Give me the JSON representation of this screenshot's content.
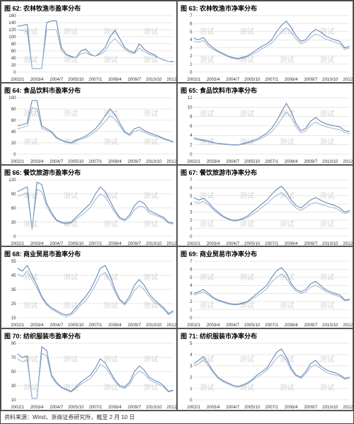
{
  "watermark_text": "测试",
  "colors": {
    "series_a": "#5a7fb0",
    "series_b": "#9db5d0",
    "grid": "#d0d0d0",
    "border": "#555555",
    "text": "#000000"
  },
  "xaxis": {
    "labels": [
      "2002/1",
      "2003/4",
      "2004/7",
      "2005/10",
      "2007/1",
      "2008/4",
      "2009/7",
      "2010/10",
      "2012/1"
    ],
    "fontsize": 6
  },
  "title_fontsize": 9,
  "axis_fontsize": 6,
  "charts": [
    {
      "id": "c62",
      "title": "图 62: 农林牧渔市盈率分布",
      "ylim": [
        0,
        160
      ],
      "ytick_step": 20,
      "series": [
        {
          "color": "#5a7fb0",
          "data": [
            130,
            132,
            135,
            10,
            10,
            10,
            140,
            145,
            145,
            70,
            50,
            45,
            40,
            60,
            65,
            50,
            45,
            55,
            70,
            100,
            118,
            95,
            70,
            60,
            55,
            80,
            65,
            55,
            50,
            40,
            35,
            30,
            30
          ]
        },
        {
          "color": "#9db5d0",
          "data": [
            120,
            118,
            115,
            10,
            10,
            10,
            120,
            120,
            120,
            60,
            48,
            42,
            40,
            52,
            55,
            48,
            45,
            50,
            60,
            82,
            95,
            80,
            65,
            55,
            52,
            68,
            58,
            50,
            46,
            40,
            34,
            30,
            28
          ]
        }
      ]
    },
    {
      "id": "c63",
      "title": "图 63: 农林牧渔市净率分布",
      "ylim": [
        0,
        7
      ],
      "ytick_step": 1,
      "series": [
        {
          "color": "#5a7fb0",
          "data": [
            4.2,
            4.0,
            4.3,
            3.5,
            3.0,
            2.6,
            2.3,
            2.0,
            1.8,
            1.7,
            1.8,
            2.0,
            2.4,
            2.8,
            3.2,
            3.5,
            4.0,
            5.0,
            5.8,
            6.3,
            5.5,
            4.5,
            3.8,
            4.0,
            4.8,
            5.3,
            5.0,
            4.5,
            4.2,
            4.0,
            3.8,
            3.0,
            3.2
          ]
        },
        {
          "color": "#9db5d0",
          "data": [
            3.8,
            3.7,
            3.9,
            3.2,
            2.8,
            2.5,
            2.2,
            1.9,
            1.7,
            1.6,
            1.7,
            1.9,
            2.2,
            2.5,
            2.9,
            3.2,
            3.6,
            4.3,
            5.0,
            5.5,
            4.9,
            4.1,
            3.5,
            3.7,
            4.3,
            4.7,
            4.5,
            4.1,
            3.9,
            3.7,
            3.5,
            2.8,
            3.0
          ]
        }
      ]
    },
    {
      "id": "c64",
      "title": "图 64: 食品饮料市盈率分布",
      "ylim": [
        0,
        100
      ],
      "ytick_step": 20,
      "series": [
        {
          "color": "#5a7fb0",
          "data": [
            50,
            52,
            55,
            95,
            95,
            50,
            45,
            40,
            30,
            25,
            22,
            20,
            25,
            28,
            32,
            38,
            45,
            55,
            68,
            80,
            70,
            55,
            40,
            35,
            45,
            48,
            42,
            38,
            35,
            32,
            28,
            25,
            22
          ]
        },
        {
          "color": "#9db5d0",
          "data": [
            45,
            47,
            50,
            82,
            80,
            46,
            42,
            38,
            28,
            24,
            21,
            19,
            23,
            26,
            29,
            34,
            40,
            48,
            58,
            68,
            62,
            50,
            38,
            33,
            40,
            43,
            39,
            35,
            32,
            30,
            26,
            24,
            21
          ]
        }
      ]
    },
    {
      "id": "c65",
      "title": "图 65: 食品饮料市净率分布",
      "ylim": [
        0,
        12
      ],
      "ytick_step": 2,
      "series": [
        {
          "color": "#5a7fb0",
          "data": [
            3.5,
            3.2,
            3.0,
            2.8,
            2.5,
            2.3,
            2.2,
            2.1,
            2.0,
            2.0,
            2.2,
            2.5,
            2.8,
            3.2,
            3.8,
            4.5,
            5.5,
            7.0,
            9.0,
            10.8,
            9.0,
            6.5,
            5.0,
            5.5,
            7.0,
            7.8,
            7.0,
            6.5,
            6.2,
            6.0,
            5.8,
            5.0,
            4.8
          ]
        },
        {
          "color": "#9db5d0",
          "data": [
            3.2,
            3.0,
            2.8,
            2.6,
            2.4,
            2.2,
            2.1,
            2.0,
            1.9,
            1.9,
            2.1,
            2.3,
            2.6,
            2.9,
            3.4,
            4.0,
            4.8,
            6.0,
            7.5,
            9.0,
            7.8,
            5.8,
            4.5,
            5.0,
            6.2,
            6.8,
            6.3,
            5.9,
            5.6,
            5.4,
            5.2,
            4.6,
            4.4
          ]
        }
      ]
    },
    {
      "id": "c66",
      "title": "图 66: 餐饮旅游市盈率分布",
      "ylim": [
        0,
        120
      ],
      "ytick_step": 30,
      "series": [
        {
          "color": "#5a7fb0",
          "data": [
            95,
            100,
            105,
            15,
            115,
            110,
            70,
            50,
            35,
            30,
            28,
            30,
            40,
            50,
            60,
            70,
            90,
            105,
            95,
            75,
            55,
            40,
            35,
            45,
            65,
            75,
            70,
            55,
            50,
            45,
            40,
            30,
            28
          ]
        },
        {
          "color": "#9db5d0",
          "data": [
            85,
            88,
            92,
            15,
            100,
            95,
            64,
            46,
            33,
            28,
            26,
            28,
            36,
            44,
            52,
            62,
            78,
            90,
            84,
            67,
            50,
            37,
            33,
            40,
            56,
            64,
            62,
            50,
            46,
            42,
            37,
            28,
            26
          ]
        }
      ]
    },
    {
      "id": "c67",
      "title": "图 67: 餐饮旅游市净率分布",
      "ylim": [
        0,
        7
      ],
      "ytick_step": 1,
      "series": [
        {
          "color": "#5a7fb0",
          "data": [
            4.8,
            4.5,
            4.7,
            4.2,
            3.5,
            3.0,
            2.5,
            2.2,
            2.0,
            2.0,
            2.2,
            2.5,
            3.0,
            3.5,
            4.0,
            4.5,
            5.2,
            5.8,
            6.2,
            5.5,
            4.5,
            3.8,
            3.5,
            4.0,
            4.5,
            4.8,
            4.5,
            4.2,
            4.0,
            3.8,
            3.5,
            3.0,
            3.2
          ]
        },
        {
          "color": "#9db5d0",
          "data": [
            4.3,
            4.1,
            4.3,
            3.9,
            3.3,
            2.8,
            2.4,
            2.1,
            1.9,
            1.9,
            2.1,
            2.3,
            2.7,
            3.1,
            3.6,
            4.0,
            4.6,
            5.1,
            5.4,
            4.9,
            4.1,
            3.5,
            3.2,
            3.6,
            4.0,
            4.2,
            4.0,
            3.8,
            3.6,
            3.5,
            3.2,
            2.8,
            3.0
          ]
        }
      ]
    },
    {
      "id": "c68",
      "title": "图 68: 商业贸易市盈率分布",
      "ylim": [
        15,
        55
      ],
      "ytick_step": 10,
      "series": [
        {
          "color": "#5a7fb0",
          "data": [
            50,
            48,
            52,
            45,
            38,
            30,
            25,
            22,
            20,
            18,
            17,
            18,
            22,
            26,
            30,
            35,
            42,
            50,
            52,
            45,
            35,
            28,
            25,
            30,
            38,
            42,
            38,
            32,
            28,
            25,
            22,
            18,
            20
          ]
        },
        {
          "color": "#9db5d0",
          "data": [
            46,
            44,
            48,
            42,
            36,
            29,
            24,
            21,
            19,
            17,
            16,
            17,
            20,
            24,
            27,
            32,
            38,
            45,
            47,
            41,
            33,
            27,
            24,
            28,
            34,
            38,
            35,
            30,
            26,
            24,
            21,
            17,
            19
          ]
        }
      ]
    },
    {
      "id": "c69",
      "title": "图 69: 商业贸易市净率分布",
      "ylim": [
        0,
        7
      ],
      "ytick_step": 1,
      "series": [
        {
          "color": "#5a7fb0",
          "data": [
            3.0,
            3.2,
            3.5,
            3.0,
            2.5,
            2.2,
            2.0,
            1.8,
            1.7,
            1.7,
            1.8,
            2.0,
            2.5,
            3.0,
            3.5,
            4.0,
            5.0,
            5.8,
            6.2,
            5.5,
            4.2,
            3.5,
            3.2,
            3.5,
            4.2,
            4.5,
            4.0,
            3.5,
            3.2,
            3.0,
            2.8,
            2.2,
            2.3
          ]
        },
        {
          "color": "#9db5d0",
          "data": [
            2.8,
            3.0,
            3.2,
            2.8,
            2.4,
            2.1,
            1.9,
            1.7,
            1.6,
            1.6,
            1.7,
            1.9,
            2.3,
            2.7,
            3.1,
            3.6,
            4.4,
            5.0,
            5.4,
            4.9,
            3.9,
            3.3,
            3.0,
            3.2,
            3.8,
            4.0,
            3.7,
            3.3,
            3.0,
            2.8,
            2.6,
            2.1,
            2.2
          ]
        }
      ]
    },
    {
      "id": "c70",
      "title": "图 70: 纺织服装市盈率分布",
      "ylim": [
        10,
        90
      ],
      "ytick_step": 20,
      "series": [
        {
          "color": "#5a7fb0",
          "data": [
            75,
            70,
            72,
            12,
            12,
            85,
            80,
            45,
            35,
            28,
            25,
            22,
            28,
            35,
            40,
            45,
            55,
            68,
            62,
            50,
            38,
            30,
            28,
            35,
            50,
            58,
            52,
            42,
            38,
            35,
            30,
            22,
            24
          ]
        },
        {
          "color": "#9db5d0",
          "data": [
            68,
            64,
            66,
            12,
            12,
            76,
            72,
            42,
            33,
            27,
            24,
            21,
            26,
            32,
            36,
            41,
            49,
            60,
            56,
            46,
            36,
            28,
            26,
            32,
            44,
            51,
            47,
            39,
            35,
            32,
            28,
            21,
            23
          ]
        }
      ]
    },
    {
      "id": "c71",
      "title": "图 71: 纺织服装市净率分布",
      "ylim": [
        0,
        5
      ],
      "ytick_step": 1,
      "series": [
        {
          "color": "#5a7fb0",
          "data": [
            3.2,
            3.5,
            3.8,
            3.2,
            2.5,
            2.0,
            1.7,
            1.5,
            1.3,
            1.2,
            1.3,
            1.5,
            1.8,
            2.2,
            2.5,
            2.8,
            3.5,
            4.2,
            4.5,
            3.8,
            2.8,
            2.2,
            2.0,
            2.5,
            3.2,
            3.5,
            3.0,
            2.7,
            2.5,
            2.4,
            2.2,
            1.9,
            2.0
          ]
        },
        {
          "color": "#9db5d0",
          "data": [
            3.0,
            3.2,
            3.5,
            3.0,
            2.4,
            1.9,
            1.6,
            1.4,
            1.2,
            1.1,
            1.2,
            1.4,
            1.7,
            2.0,
            2.3,
            2.6,
            3.1,
            3.7,
            4.0,
            3.5,
            2.6,
            2.1,
            1.9,
            2.3,
            2.9,
            3.1,
            2.8,
            2.5,
            2.3,
            2.2,
            2.1,
            1.8,
            1.9
          ]
        }
      ]
    }
  ],
  "footer": "资料来源：Wind，浙商证券研究所，截至 2 月 10 日"
}
